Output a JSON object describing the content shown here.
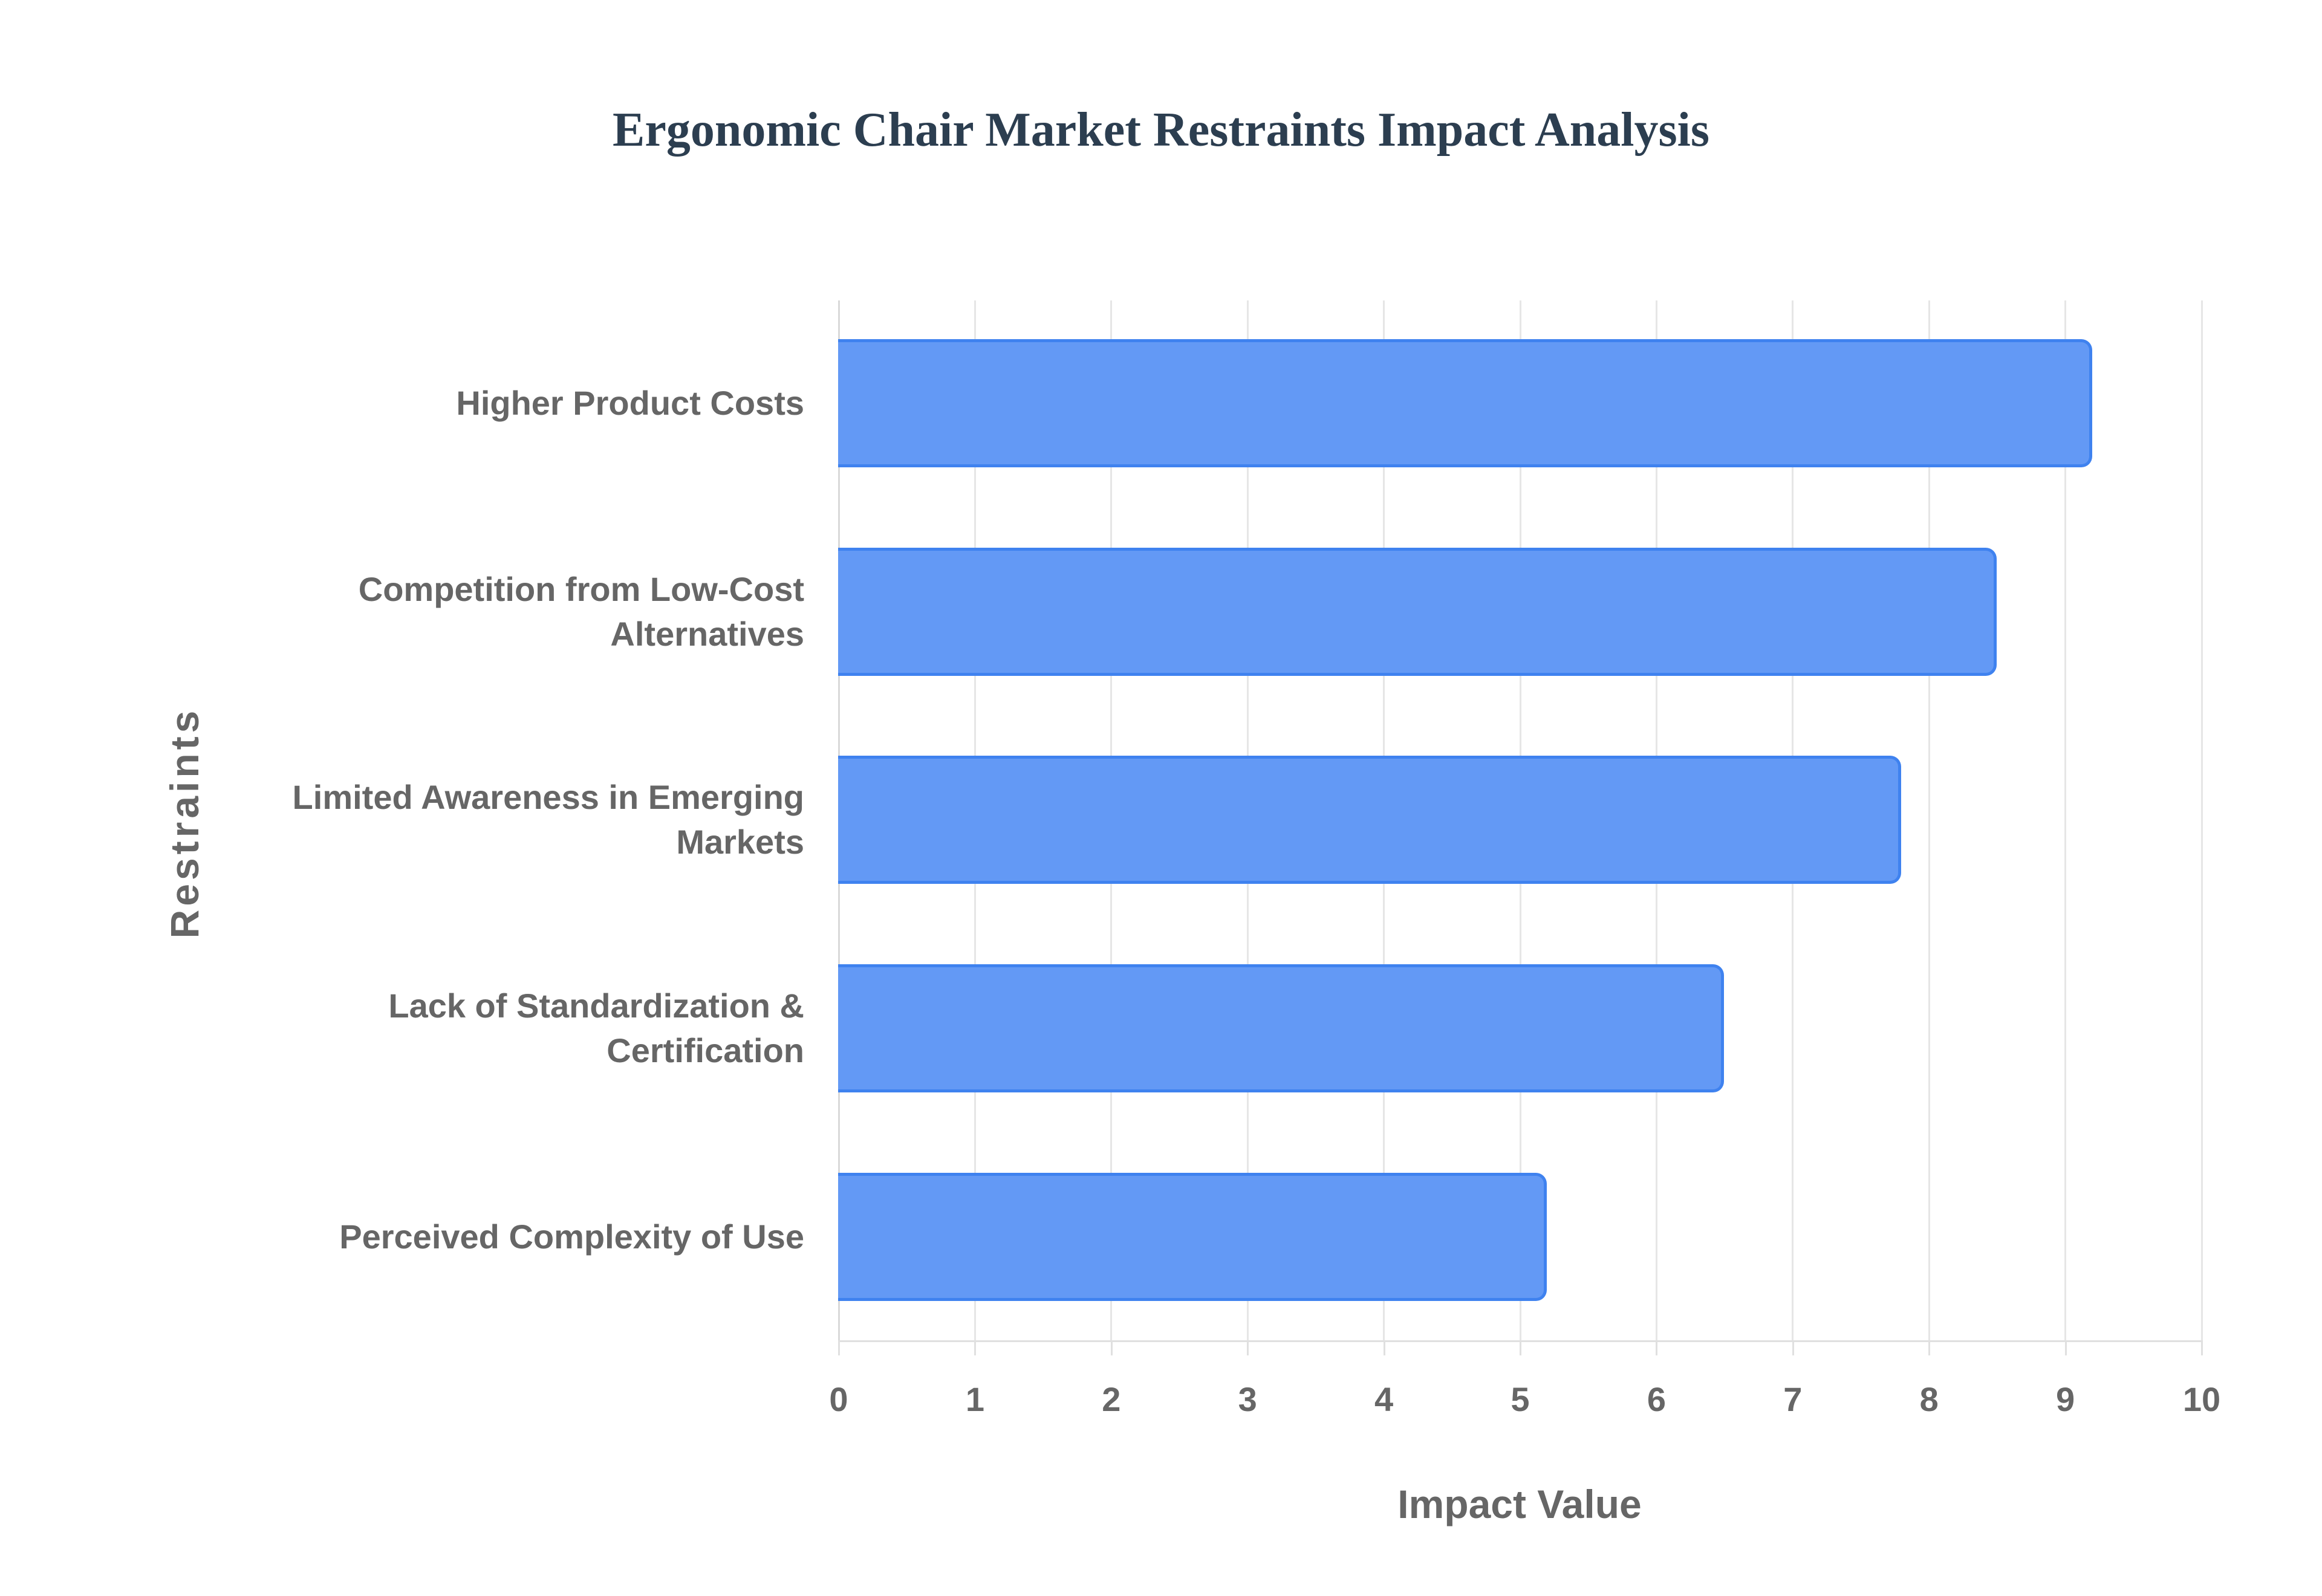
{
  "chart_data": {
    "type": "bar",
    "orientation": "horizontal",
    "title": "Ergonomic Chair Market Restraints Impact Analysis",
    "xlabel": "Impact Value",
    "ylabel": "Restraints",
    "categories": [
      "Higher Product Costs",
      "Competition from Low-Cost Alternatives",
      "Limited Awareness in Emerging Markets",
      "Lack of Standardization & Certification",
      "Perceived Complexity of Use"
    ],
    "category_lines": [
      [
        "Higher Product Costs"
      ],
      [
        "Competition from Low-Cost",
        "Alternatives"
      ],
      [
        "Limited Awareness in Emerging",
        "Markets"
      ],
      [
        "Lack of Standardization &",
        "Certification"
      ],
      [
        "Perceived Complexity of Use"
      ]
    ],
    "values": [
      9.2,
      8.5,
      7.8,
      6.5,
      5.2
    ],
    "xlim": [
      0,
      10
    ],
    "xticks": [
      "0",
      "1",
      "2",
      "3",
      "4",
      "5",
      "6",
      "7",
      "8",
      "9",
      "10"
    ],
    "grid": true,
    "legend": null,
    "colors": {
      "bar_fill": "#6399f5",
      "bar_border": "#3f82ef",
      "title": "#2c3e50",
      "text": "#666666",
      "grid": "#e6e6e6"
    }
  }
}
